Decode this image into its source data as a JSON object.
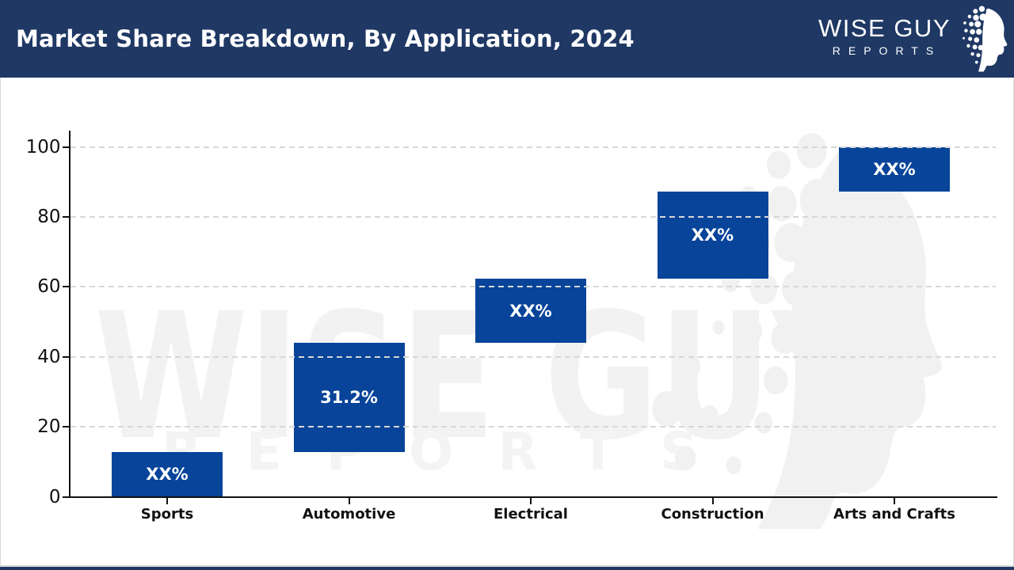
{
  "header": {
    "title": "Market Share Breakdown, By Application, 2024",
    "background_color": "#1F3864",
    "logo": {
      "line1": "WISE GUY",
      "line2": "REPORTS"
    }
  },
  "watermark": {
    "line1": "WISE GUY",
    "line2": "REPORTS"
  },
  "chart_data": {
    "type": "bar",
    "variant": "waterfall-floating-bars",
    "title": "Market Share Breakdown, By Application, 2024",
    "categories": [
      "Sports",
      "Automotive",
      "Electrical",
      "Construction",
      "Arts and Crafts"
    ],
    "bars": [
      {
        "category": "Sports",
        "start": 0,
        "end": 12.7,
        "value_label": "XX%"
      },
      {
        "category": "Automotive",
        "start": 12.7,
        "end": 43.9,
        "value_label": "31.2%"
      },
      {
        "category": "Electrical",
        "start": 43.9,
        "end": 62.3,
        "value_label": "XX%"
      },
      {
        "category": "Construction",
        "start": 62.3,
        "end": 87.3,
        "value_label": "XX%"
      },
      {
        "category": "Arts and Crafts",
        "start": 87.3,
        "end": 100,
        "value_label": "XX%"
      }
    ],
    "segment_heights_pct": [
      12.7,
      31.2,
      18.4,
      25.0,
      12.7
    ],
    "yticks": [
      0,
      20,
      40,
      60,
      80,
      100
    ],
    "ylim": [
      0,
      104.5
    ],
    "xlabel": "",
    "ylabel": "",
    "legend": "none",
    "grid": {
      "horizontal": true,
      "style": "dashed",
      "color": "#d7d7d7",
      "drawn_over_bars": true
    },
    "bar_color": "#07449A",
    "bar_label_color": "#ffffff",
    "axis_color": "#111111"
  }
}
